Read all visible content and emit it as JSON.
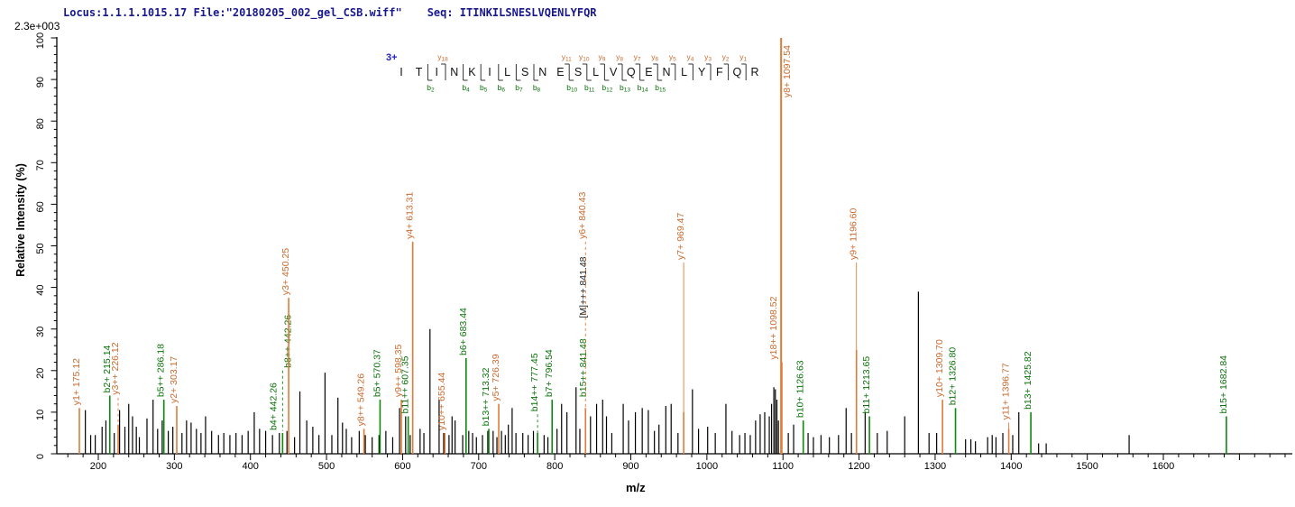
{
  "header": {
    "locus_file": "Locus:1.1.1.1015.17 File:\"20180205_002_gel_CSB.wiff\"",
    "seq": "Seq: ITINKILSNESLVQENLYFQR",
    "intensity_scale": "2.3e+003"
  },
  "chart_data": {
    "type": "bar",
    "subtype": "ms2-fragmentation-spectrum",
    "xlabel": "m/z",
    "ylabel": "Relative  Intensity (%)",
    "xlim": [
      145,
      1769
    ],
    "ylim": [
      0,
      100
    ],
    "x_major_ticks": [
      200,
      300,
      400,
      500,
      600,
      700,
      800,
      900,
      1000,
      1100,
      1200,
      1300,
      1400,
      1500,
      1600,
      1700
    ],
    "x_labeled_ticks": [
      200,
      300,
      400,
      500,
      600,
      700,
      800,
      900,
      1000,
      1100,
      1200,
      1300,
      1400,
      1500,
      1600
    ],
    "x_minor_step": 20,
    "y_major_step": 10,
    "y_minor_step": 2,
    "precursor_charge": "3+",
    "colors": {
      "y_line": "#E07B39",
      "y_text": "#C96A2E",
      "b_line": "#0B8A0B",
      "b_text": "#0A730A",
      "precursor_text": "#222222",
      "noise": "#000000",
      "navy": "#18188C"
    },
    "sequence": {
      "residues": "ITINKILSNESLVQENLYFQR",
      "cleavages": [
        {
          "pos": 2,
          "b": "b2"
        },
        {
          "pos": 3,
          "y": "y18"
        },
        {
          "pos": 4,
          "b": "b4"
        },
        {
          "pos": 5,
          "b": "b5"
        },
        {
          "pos": 6,
          "b": "b6"
        },
        {
          "pos": 7,
          "b": "b7"
        },
        {
          "pos": 8,
          "b": "b8"
        },
        {
          "pos": 10,
          "b": "b10",
          "y": "y11"
        },
        {
          "pos": 11,
          "b": "b11",
          "y": "y10"
        },
        {
          "pos": 12,
          "b": "b12",
          "y": "y9"
        },
        {
          "pos": 13,
          "b": "b13",
          "y": "y8"
        },
        {
          "pos": 14,
          "b": "b14",
          "y": "y7"
        },
        {
          "pos": 15,
          "b": "b15",
          "y": "y6"
        },
        {
          "pos": 16,
          "y": "y5"
        },
        {
          "pos": 17,
          "y": "y4"
        },
        {
          "pos": 18,
          "y": "y3"
        },
        {
          "pos": 19,
          "y": "y2"
        },
        {
          "pos": 20,
          "y": "y1"
        }
      ]
    },
    "annotated_peaks": [
      {
        "label": "y1+ 175.12",
        "mz": 175.12,
        "pct": 11,
        "series": "y"
      },
      {
        "label": "b2+ 215.14",
        "mz": 215.14,
        "pct": 14,
        "series": "b"
      },
      {
        "label": "y3++ 226.12",
        "mz": 226.12,
        "pct": 7,
        "series": "y",
        "label_from": 13.5,
        "leader": "dashed"
      },
      {
        "label": "b5++ 286.18",
        "mz": 286.18,
        "pct": 13,
        "series": "b"
      },
      {
        "label": "y2+ 303.17",
        "mz": 303.17,
        "pct": 11.5,
        "series": "y"
      },
      {
        "label": "b4+ 442.26",
        "mz": 442.26,
        "pct": 5,
        "series": "b",
        "dx": -7
      },
      {
        "label": "b8++ 442.26",
        "mz": 442.26,
        "pct": 0,
        "series": "b",
        "label_from": 20,
        "leader": "dashed",
        "leader_to": 5.5,
        "dx": 9
      },
      {
        "label": "y3+ 450.25",
        "mz": 450.25,
        "pct": 37.5,
        "series": "y"
      },
      {
        "label": "y8++ 549.26",
        "mz": 549.26,
        "pct": 6,
        "series": "y"
      },
      {
        "label": "b5+ 570.37",
        "mz": 570.37,
        "pct": 13,
        "series": "b"
      },
      {
        "label": "y9++ 598.35",
        "mz": 598.35,
        "pct": 13,
        "series": "y"
      },
      {
        "label": "b11++ 607.35",
        "mz": 607.35,
        "pct": 9,
        "series": "b"
      },
      {
        "label": "y4+ 613.31",
        "mz": 613.31,
        "pct": 51,
        "series": "y"
      },
      {
        "label": "y10++ 655.44",
        "mz": 655.44,
        "pct": 5,
        "series": "y"
      },
      {
        "label": "b6+ 683.44",
        "mz": 683.44,
        "pct": 23,
        "series": "b"
      },
      {
        "label": "b13++ 713.32",
        "mz": 713.32,
        "pct": 6,
        "series": "b"
      },
      {
        "label": "y5+ 726.39",
        "mz": 726.39,
        "pct": 12,
        "series": "y"
      },
      {
        "label": "b14++ 777.45",
        "mz": 777.45,
        "pct": 5,
        "series": "b",
        "label_from": 9.5,
        "leader": "dashed"
      },
      {
        "label": "b7+ 796.54",
        "mz": 796.54,
        "pct": 13,
        "series": "b"
      },
      {
        "label": "b15++ 841.48",
        "mz": 841.48,
        "pct": 0,
        "series": "b",
        "label_from": 13
      },
      {
        "label": "[M]+++ 841.48",
        "mz": 841.48,
        "pct": 0,
        "series": "M",
        "label_from": 32
      },
      {
        "label": "y6+ 840.43",
        "mz": 840.43,
        "pct": 11,
        "series": "y",
        "label_from": 51,
        "leader": "dashed"
      },
      {
        "label": "y7+ 969.47",
        "mz": 969.47,
        "pct": 10,
        "series": "y",
        "label_from": 46,
        "leader": "solid"
      },
      {
        "label": "y8+ 1097.54",
        "mz": 1097.54,
        "pct": 100,
        "series": "y",
        "label_from": 85,
        "dx": 10,
        "wide": true
      },
      {
        "label": "y18++ 1098.52",
        "mz": 1098.52,
        "pct": 22,
        "series": "y",
        "dx": -6
      },
      {
        "label": "b10+ 1126.63",
        "mz": 1126.63,
        "pct": 8,
        "series": "b"
      },
      {
        "label": "y9+ 1196.60",
        "mz": 1196.6,
        "pct": 25,
        "series": "y",
        "label_from": 46,
        "leader": "solid"
      },
      {
        "label": "b11+ 1213.65",
        "mz": 1213.65,
        "pct": 9,
        "series": "b"
      },
      {
        "label": "y10+ 1309.70",
        "mz": 1309.7,
        "pct": 13,
        "series": "y"
      },
      {
        "label": "b12+ 1326.80",
        "mz": 1326.8,
        "pct": 11,
        "series": "b"
      },
      {
        "label": "y11+ 1396.77",
        "mz": 1396.77,
        "pct": 6,
        "series": "y",
        "label_from": 7.5,
        "leader": "solid"
      },
      {
        "label": "b13+ 1425.82",
        "mz": 1425.82,
        "pct": 10,
        "series": "b"
      },
      {
        "label": "b15+ 1682.84",
        "mz": 1682.84,
        "pct": 9,
        "series": "b"
      }
    ],
    "noise_peaks": [
      [
        183,
        10.5
      ],
      [
        190,
        4.5
      ],
      [
        196,
        4.5
      ],
      [
        205,
        6.5
      ],
      [
        210,
        8
      ],
      [
        221,
        5
      ],
      [
        228,
        10.5
      ],
      [
        235,
        6.5
      ],
      [
        240,
        12
      ],
      [
        245,
        9
      ],
      [
        250,
        6.5
      ],
      [
        254,
        4
      ],
      [
        264,
        8.5
      ],
      [
        272,
        13
      ],
      [
        278,
        6
      ],
      [
        284,
        8
      ],
      [
        292,
        5.5
      ],
      [
        298,
        6.5
      ],
      [
        310,
        5
      ],
      [
        316,
        8
      ],
      [
        322,
        7.5
      ],
      [
        329,
        6
      ],
      [
        335,
        5
      ],
      [
        341,
        9
      ],
      [
        349,
        5.5
      ],
      [
        358,
        4.5
      ],
      [
        365,
        5
      ],
      [
        373,
        4.5
      ],
      [
        381,
        5
      ],
      [
        389,
        4.5
      ],
      [
        397,
        5.5
      ],
      [
        405,
        10
      ],
      [
        412,
        6
      ],
      [
        420,
        5.5
      ],
      [
        429,
        4.5
      ],
      [
        438,
        5
      ],
      [
        448,
        5.5
      ],
      [
        458,
        4
      ],
      [
        465,
        15
      ],
      [
        474,
        8
      ],
      [
        482,
        6.5
      ],
      [
        490,
        4.5
      ],
      [
        498,
        19.5
      ],
      [
        507,
        4.5
      ],
      [
        515,
        13.5
      ],
      [
        521,
        7.5
      ],
      [
        526,
        6
      ],
      [
        533,
        4
      ],
      [
        543,
        5.5
      ],
      [
        551,
        4.5
      ],
      [
        560,
        4
      ],
      [
        569,
        4.5
      ],
      [
        578,
        5.5
      ],
      [
        587,
        4
      ],
      [
        596,
        11
      ],
      [
        604,
        9
      ],
      [
        610,
        4.5
      ],
      [
        623,
        6
      ],
      [
        628,
        5
      ],
      [
        636,
        30
      ],
      [
        648,
        13
      ],
      [
        654,
        5
      ],
      [
        661,
        4.5
      ],
      [
        665,
        9
      ],
      [
        669,
        8
      ],
      [
        679,
        4.5
      ],
      [
        687,
        5.5
      ],
      [
        692,
        5
      ],
      [
        697,
        4
      ],
      [
        705,
        4.5
      ],
      [
        712,
        5.5
      ],
      [
        719,
        5.5
      ],
      [
        724,
        4
      ],
      [
        730,
        5.5
      ],
      [
        735,
        4.5
      ],
      [
        739,
        7
      ],
      [
        744,
        11
      ],
      [
        749,
        5
      ],
      [
        758,
        5
      ],
      [
        765,
        4.5
      ],
      [
        772,
        5.5
      ],
      [
        786,
        4.5
      ],
      [
        791,
        4
      ],
      [
        803,
        6
      ],
      [
        809,
        12
      ],
      [
        816,
        10
      ],
      [
        828,
        16
      ],
      [
        833,
        6
      ],
      [
        847,
        9
      ],
      [
        855,
        12
      ],
      [
        863,
        13
      ],
      [
        868,
        9
      ],
      [
        875,
        5
      ],
      [
        890,
        12
      ],
      [
        897,
        8
      ],
      [
        906,
        10
      ],
      [
        915,
        11
      ],
      [
        923,
        10.5
      ],
      [
        931,
        5.5
      ],
      [
        937,
        7
      ],
      [
        946,
        11.5
      ],
      [
        953,
        12
      ],
      [
        962,
        5
      ],
      [
        981,
        15.5
      ],
      [
        989,
        6
      ],
      [
        1001,
        6.5
      ],
      [
        1011,
        5
      ],
      [
        1025,
        12
      ],
      [
        1033,
        5.5
      ],
      [
        1043,
        4.5
      ],
      [
        1050,
        5
      ],
      [
        1057,
        4.5
      ],
      [
        1064,
        8
      ],
      [
        1070,
        9.5
      ],
      [
        1076,
        10
      ],
      [
        1082,
        9
      ],
      [
        1085,
        12
      ],
      [
        1088,
        16
      ],
      [
        1090,
        15.5
      ],
      [
        1092,
        13
      ],
      [
        1094,
        8
      ],
      [
        1107,
        5
      ],
      [
        1114,
        7
      ],
      [
        1133,
        5
      ],
      [
        1140,
        4
      ],
      [
        1150,
        4.5
      ],
      [
        1161,
        4
      ],
      [
        1173,
        4.5
      ],
      [
        1183,
        11
      ],
      [
        1190,
        5
      ],
      [
        1208,
        10
      ],
      [
        1224,
        5
      ],
      [
        1237,
        5.5
      ],
      [
        1260,
        9
      ],
      [
        1278,
        39
      ],
      [
        1292,
        5
      ],
      [
        1302,
        5
      ],
      [
        1340,
        3.5
      ],
      [
        1347,
        3.5
      ],
      [
        1353,
        3
      ],
      [
        1369,
        4
      ],
      [
        1375,
        4.5
      ],
      [
        1380,
        4
      ],
      [
        1389,
        5
      ],
      [
        1402,
        4.5
      ],
      [
        1410,
        10
      ],
      [
        1436,
        2.5
      ],
      [
        1446,
        2.5
      ],
      [
        1555,
        4.5
      ]
    ]
  }
}
